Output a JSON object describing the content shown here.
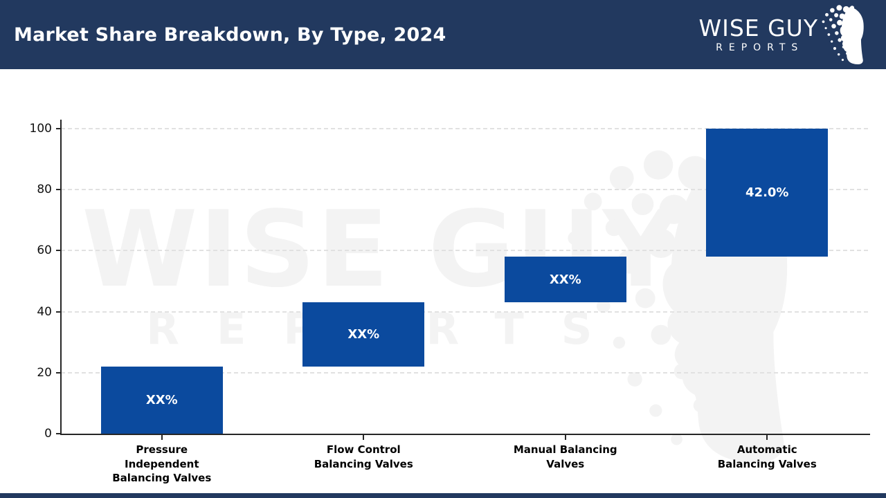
{
  "header": {
    "title": "Market Share Breakdown, By Type, 2024",
    "logo": {
      "line1": "WISE GUY",
      "line2": "REPORTS"
    }
  },
  "watermark": {
    "line1": "WISE GUY",
    "line2": "REPORTS"
  },
  "chart_data": {
    "type": "bar",
    "subtype": "waterfall",
    "title": "Market Share Breakdown, By Type, 2024",
    "categories": [
      "Pressure Independent Balancing Valves",
      "Flow Control Balancing Valves",
      "Manual Balancing Valves",
      "Automatic Balancing Valves"
    ],
    "category_label_lines": [
      [
        "Pressure",
        "Independent",
        "Balancing Valves"
      ],
      [
        "Flow Control",
        "Balancing Valves"
      ],
      [
        "Manual Balancing",
        "Valves"
      ],
      [
        "Automatic",
        "Balancing Valves"
      ]
    ],
    "segments": [
      {
        "start": 0,
        "end": 22,
        "value": 22,
        "label": "XX%"
      },
      {
        "start": 22,
        "end": 43,
        "value": 21,
        "label": "XX%"
      },
      {
        "start": 43,
        "end": 58,
        "value": 15,
        "label": "XX%"
      },
      {
        "start": 58,
        "end": 100,
        "value": 42,
        "label": "42.0%"
      }
    ],
    "ylim": [
      0,
      100
    ],
    "yticks": [
      0,
      20,
      40,
      60,
      80,
      100
    ],
    "xlabel": "",
    "ylabel": "",
    "grid": "horizontal-dashed",
    "legend": "none",
    "colors": {
      "bar": "#0b4a9e",
      "bar_label": "#ffffff",
      "header_bg": "#22395f",
      "footer_bg": "#22395f",
      "gridline": "#e1e1e1",
      "axis": "#262626",
      "watermark": "#f3f3f3"
    }
  }
}
